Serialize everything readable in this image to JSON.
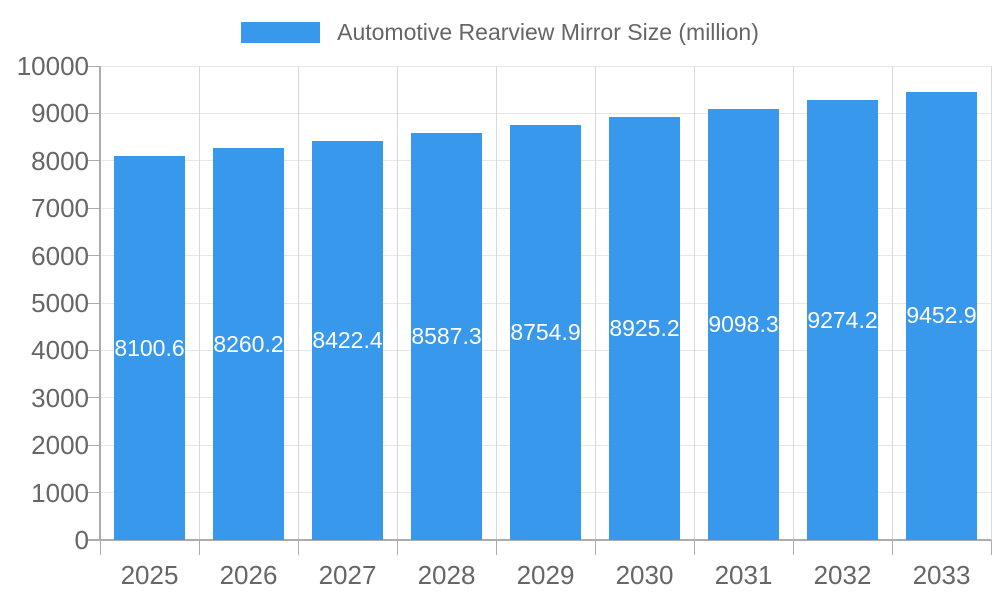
{
  "legend": {
    "label": "Automotive Rearview Mirror Size (million)"
  },
  "chart_data": {
    "type": "bar",
    "title": "Automotive Rearview Mirror Size (million)",
    "categories": [
      "2025",
      "2026",
      "2027",
      "2028",
      "2029",
      "2030",
      "2031",
      "2032",
      "2033"
    ],
    "values": [
      8100.6,
      8260.2,
      8422.4,
      8587.3,
      8754.9,
      8925.2,
      9098.3,
      9274.2,
      9452.9
    ],
    "value_labels": [
      "8100.6",
      "8260.2",
      "8422.4",
      "8587.3",
      "8754.9",
      "8925.2",
      "9098.3",
      "9274.2",
      "9452.9"
    ],
    "xlabel": "",
    "ylabel": "",
    "ylim": [
      0,
      10000
    ],
    "ytick_step": 1000,
    "grid": true,
    "legend_position": "top-center",
    "bar_color": "#3898EC",
    "bar_label_color": "#FFFFFF",
    "axis_color": "#ACACAC",
    "grid_color_horizontal": "#E7E7E7",
    "grid_color_vertical": "#D9D9D9",
    "tick_label_color": "#666666"
  }
}
